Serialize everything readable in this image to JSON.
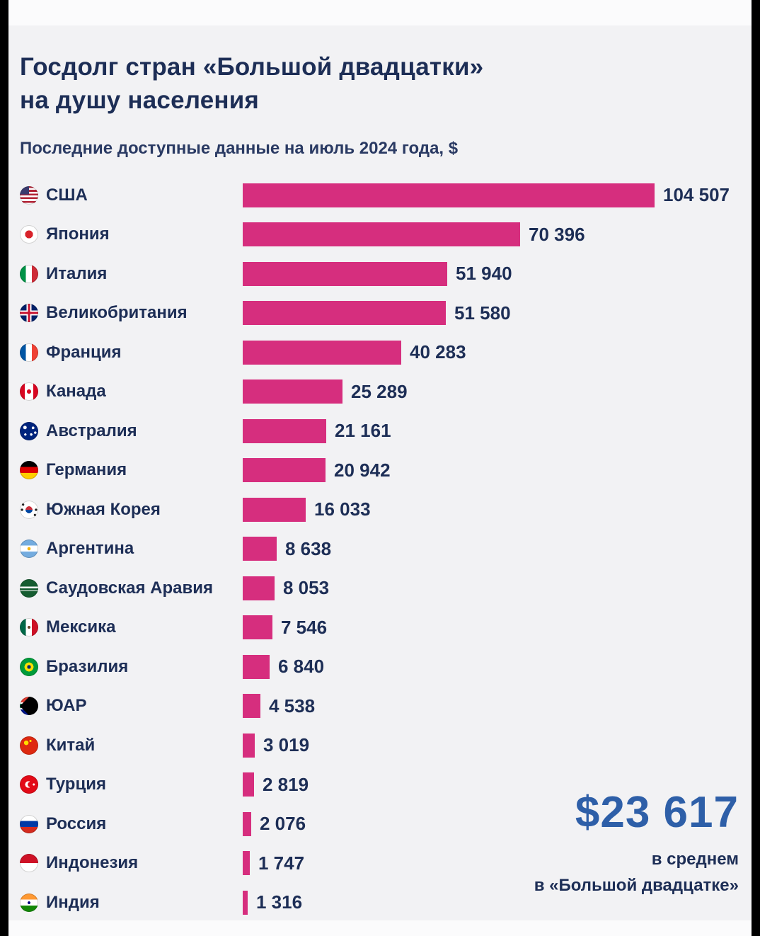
{
  "palette": {
    "background": "#f2f2f4",
    "bar_color": "#d62e7e",
    "text_color": "#1d2e56",
    "highlight_color": "#2e5fa8"
  },
  "header": {
    "title_line1": "Госдолг стран «Большой двадцатки»",
    "title_line2": "на душу населения",
    "subtitle": "Последние доступные данные на июль 2024 года, $"
  },
  "summary": {
    "value": "$23 617",
    "caption_line1": "в среднем",
    "caption_line2": "в «Большой двадцатке»"
  },
  "chart_data": {
    "type": "bar",
    "orientation": "horizontal",
    "title": "Госдолг стран «Большой двадцатки» на душу населения",
    "subtitle": "Последние доступные данные на июль 2024 года, $",
    "unit": "$",
    "legend": false,
    "grid": false,
    "xlim": [
      0,
      104507
    ],
    "categories": [
      "США",
      "Япония",
      "Италия",
      "Великобритания",
      "Франция",
      "Канада",
      "Австралия",
      "Германия",
      "Южная Корея",
      "Аргентина",
      "Саудовская Аравия",
      "Мексика",
      "Бразилия",
      "ЮАР",
      "Китай",
      "Турция",
      "Россия",
      "Индонезия",
      "Индия"
    ],
    "values": [
      104507,
      70396,
      51940,
      51580,
      40283,
      25289,
      21161,
      20942,
      16033,
      8638,
      8053,
      7546,
      6840,
      4538,
      3019,
      2819,
      2076,
      1747,
      1316
    ],
    "value_labels": [
      "104 507",
      "70 396",
      "51 940",
      "51 580",
      "40 283",
      "25 289",
      "21 161",
      "20 942",
      "16 033",
      "8 638",
      "8 053",
      "7 546",
      "6 840",
      "4 538",
      "3 019",
      "2 819",
      "2 076",
      "1 747",
      "1 316"
    ],
    "flags": [
      "usa",
      "japan",
      "italy",
      "uk",
      "france",
      "canada",
      "australia",
      "germany",
      "south-korea",
      "argentina",
      "saudi-arabia",
      "mexico",
      "brazil",
      "south-africa",
      "china",
      "turkey",
      "russia",
      "indonesia",
      "india"
    ],
    "average": {
      "value": 23617,
      "label": "$23 617",
      "caption": "в среднем в «Большой двадцатке»"
    }
  }
}
